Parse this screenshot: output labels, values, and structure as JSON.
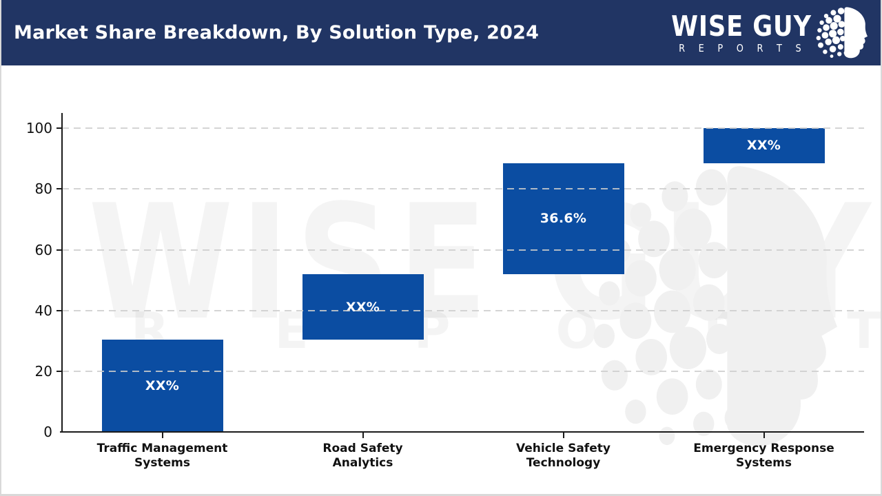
{
  "header": {
    "title": "Market Share Breakdown, By Solution Type, 2024",
    "logo_line1": "WISE GUY",
    "logo_line2": "R E P O R T S",
    "bg_color": "#213564"
  },
  "watermark": {
    "line1": "WISE GUY",
    "line2": "R E P O R T S"
  },
  "chart_data": {
    "type": "bar",
    "subtype": "floating-segment-waterfall",
    "title": "Market Share Breakdown, By Solution Type, 2024",
    "categories": [
      "Traffic Management Systems",
      "Road Safety Analytics",
      "Vehicle Safety Technology",
      "Emergency Response Systems"
    ],
    "category_label_lines": [
      [
        "Traffic Management",
        "Systems"
      ],
      [
        "Road Safety",
        "Analytics"
      ],
      [
        "Vehicle Safety",
        "Technology"
      ],
      [
        "Emergency Response",
        "Systems"
      ]
    ],
    "segments": [
      {
        "category": "Traffic Management Systems",
        "start": 0,
        "end": 30.3,
        "label": "XX%"
      },
      {
        "category": "Road Safety Analytics",
        "start": 30.3,
        "end": 52.0,
        "label": "XX%"
      },
      {
        "category": "Vehicle Safety Technology",
        "start": 52.0,
        "end": 88.6,
        "label": "36.6%"
      },
      {
        "category": "Emergency Response Systems",
        "start": 88.6,
        "end": 100,
        "label": "XX%"
      }
    ],
    "ylim": [
      0,
      100
    ],
    "yticks": [
      0,
      20,
      40,
      60,
      80,
      100
    ],
    "xlabel": "",
    "ylabel": "",
    "grid": "horizontal-dashed",
    "legend": "none",
    "bar_color": "#0b4da2",
    "bar_label_color": "#ffffff",
    "gridline_color": "#cdcdcd",
    "axis_color": "#1a1a1a"
  }
}
